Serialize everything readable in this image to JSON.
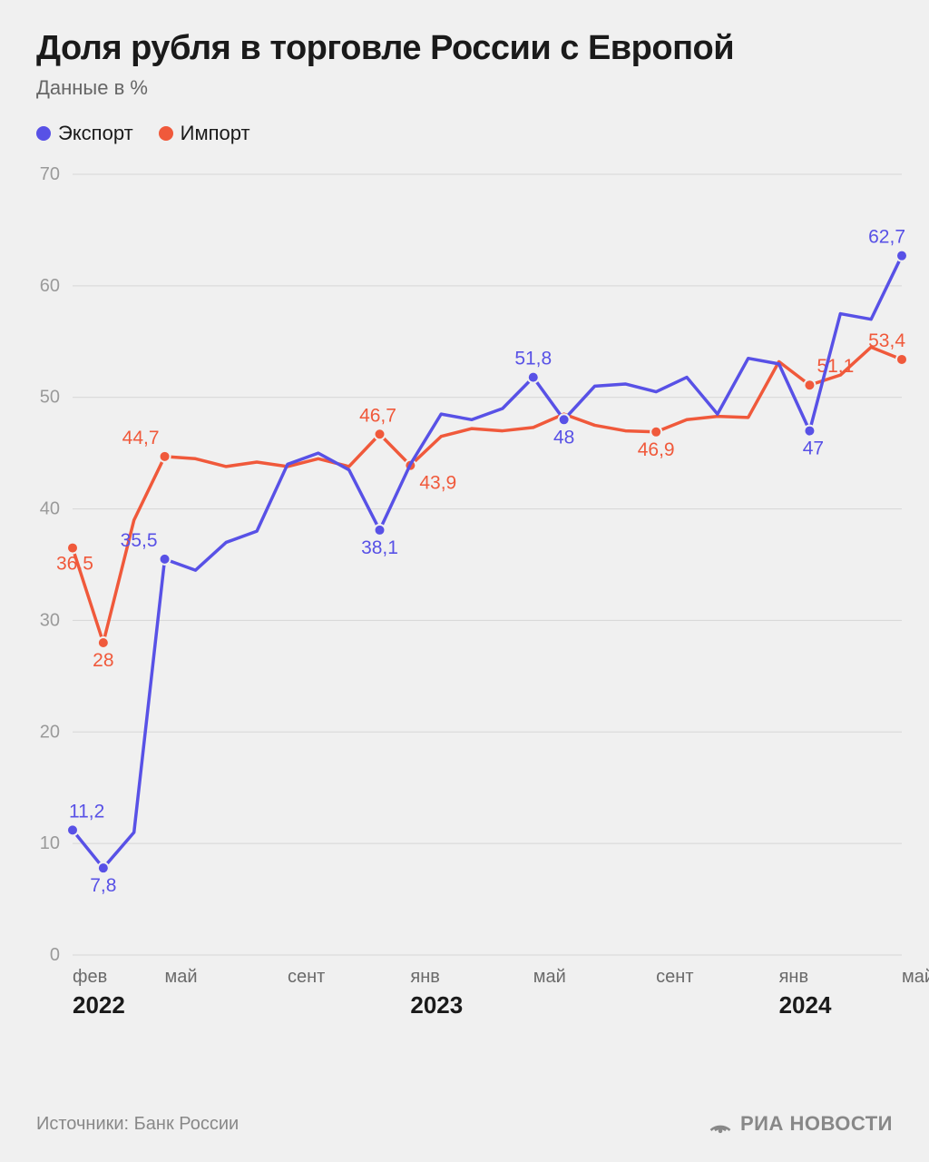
{
  "title": "Доля рубля в торговле России с Европой",
  "subtitle": "Данные в %",
  "legend": {
    "export": "Экспорт",
    "import": "Импорт"
  },
  "colors": {
    "export": "#5851e6",
    "import": "#f0593b",
    "grid": "#d6d6d6",
    "axis": "#bfbfbf",
    "ytick_text": "#9a9a9a",
    "xtick_text": "#6a6a6a",
    "year_text": "#1a1a1a",
    "background": "#f0f0f0"
  },
  "chart": {
    "type": "line",
    "ylim": [
      0,
      70
    ],
    "ytick_step": 10,
    "yticks": [
      0,
      10,
      20,
      30,
      40,
      50,
      60,
      70
    ],
    "x_count": 28,
    "line_width": 3.5,
    "marker_radius": 6,
    "x_months": [
      {
        "label": "фев",
        "idx": 0,
        "year": "2022"
      },
      {
        "label": "май",
        "idx": 3
      },
      {
        "label": "сент",
        "idx": 7
      },
      {
        "label": "янв",
        "idx": 11,
        "year": "2023"
      },
      {
        "label": "май",
        "idx": 15
      },
      {
        "label": "сент",
        "idx": 19
      },
      {
        "label": "янв",
        "idx": 23,
        "year": "2024"
      },
      {
        "label": "май",
        "idx": 27
      }
    ],
    "series": {
      "export": {
        "color": "#5851e6",
        "values": [
          11.2,
          7.8,
          11.0,
          35.5,
          34.5,
          37.0,
          38.0,
          44.0,
          45.0,
          43.5,
          38.1,
          44.0,
          48.5,
          48.0,
          49.0,
          51.8,
          48.0,
          51.0,
          51.2,
          50.5,
          51.8,
          48.5,
          53.5,
          53.0,
          47.0,
          57.5,
          57.0,
          62.7
        ],
        "labels": [
          {
            "idx": 0,
            "text": "11,2",
            "dx": -4,
            "dy": -14,
            "anchor": "start"
          },
          {
            "idx": 1,
            "text": "7,8",
            "dx": 0,
            "dy": 26,
            "anchor": "middle"
          },
          {
            "idx": 3,
            "text": "35,5",
            "dx": -8,
            "dy": -14,
            "anchor": "end"
          },
          {
            "idx": 10,
            "text": "38,1",
            "dx": 0,
            "dy": 26,
            "anchor": "middle"
          },
          {
            "idx": 15,
            "text": "51,8",
            "dx": 0,
            "dy": -14,
            "anchor": "middle"
          },
          {
            "idx": 16,
            "text": "48",
            "dx": 0,
            "dy": 26,
            "anchor": "middle"
          },
          {
            "idx": 24,
            "text": "47",
            "dx": 4,
            "dy": 26,
            "anchor": "middle"
          },
          {
            "idx": 27,
            "text": "62,7",
            "dx": 4,
            "dy": -14,
            "anchor": "end"
          }
        ],
        "markers_at": [
          0,
          1,
          3,
          10,
          15,
          16,
          24,
          27
        ]
      },
      "import": {
        "color": "#f0593b",
        "values": [
          36.5,
          28.0,
          39.0,
          44.7,
          44.5,
          43.8,
          44.2,
          43.8,
          44.5,
          43.8,
          46.7,
          43.9,
          46.5,
          47.2,
          47.0,
          47.3,
          48.5,
          47.5,
          47.0,
          46.9,
          48.0,
          48.3,
          48.2,
          53.2,
          51.1,
          52.0,
          54.5,
          53.4
        ],
        "labels": [
          {
            "idx": 0,
            "text": "36,5",
            "dx": -18,
            "dy": 24,
            "anchor": "start"
          },
          {
            "idx": 1,
            "text": "28",
            "dx": 0,
            "dy": 26,
            "anchor": "middle"
          },
          {
            "idx": 3,
            "text": "44,7",
            "dx": -6,
            "dy": -14,
            "anchor": "end"
          },
          {
            "idx": 10,
            "text": "46,7",
            "dx": -2,
            "dy": -14,
            "anchor": "middle"
          },
          {
            "idx": 11,
            "text": "43,9",
            "dx": 10,
            "dy": 26,
            "anchor": "start"
          },
          {
            "idx": 19,
            "text": "46,9",
            "dx": 0,
            "dy": 26,
            "anchor": "middle"
          },
          {
            "idx": 24,
            "text": "51,1",
            "dx": 8,
            "dy": -14,
            "anchor": "start"
          },
          {
            "idx": 27,
            "text": "53,4",
            "dx": 4,
            "dy": -14,
            "anchor": "end"
          }
        ],
        "markers_at": [
          0,
          1,
          3,
          10,
          11,
          19,
          24,
          27
        ]
      }
    }
  },
  "footer": {
    "source_label": "Источники: Банк России",
    "logo_text": "РИА НОВОСТИ"
  }
}
